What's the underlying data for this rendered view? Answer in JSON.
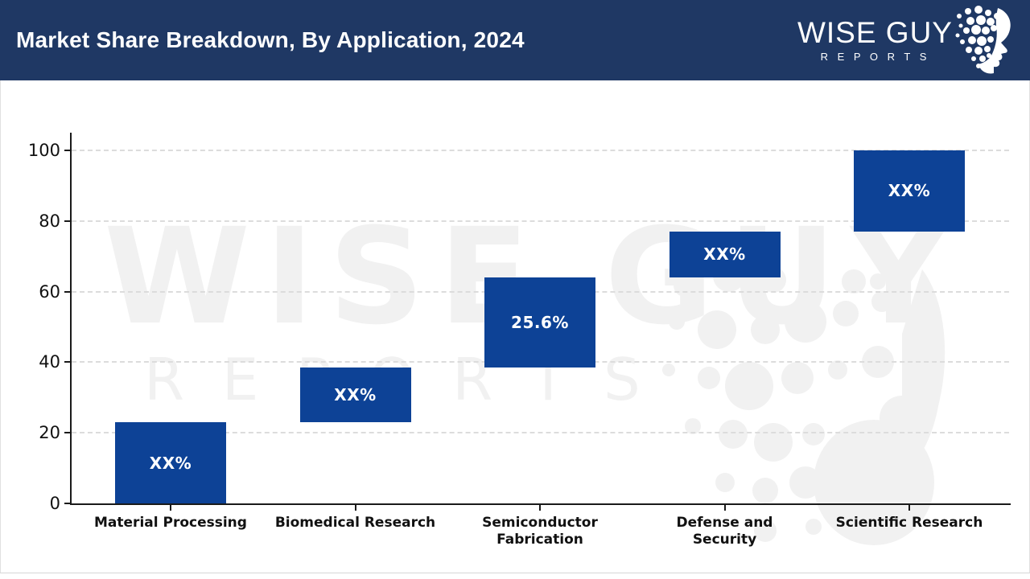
{
  "header": {
    "title": "Market Share Breakdown, By Application, 2024",
    "logo": {
      "name": "WISE GUY",
      "subtitle": "R E P O R T S"
    }
  },
  "watermark": {
    "line1": "WISE GUY",
    "line2": "R E P O R T S"
  },
  "colors": {
    "header_bg": "#1f3864",
    "bar": "#0d4296",
    "bar_label": "#ffffff",
    "grid": "#dcdcdc",
    "axis": "#1a1a1a",
    "watermark": "#f1f1f1"
  },
  "chart_data": {
    "type": "bar",
    "subtype": "waterfall",
    "title": "Market Share Breakdown, By Application, 2024",
    "categories": [
      "Material Processing",
      "Biomedical Research",
      "Semiconductor Fabrication",
      "Defense and Security",
      "Scientific Research"
    ],
    "values": [
      23.0,
      15.5,
      25.6,
      12.9,
      23.0
    ],
    "cumulative_starts": [
      0,
      23.0,
      38.5,
      64.1,
      77.0
    ],
    "bar_labels": [
      "XX%",
      "XX%",
      "25.6%",
      "XX%",
      "XX%"
    ],
    "unit": "percent",
    "ylabel": "",
    "xlabel": "",
    "ylim": [
      0,
      100
    ],
    "yticks": [
      0,
      20,
      40,
      60,
      80,
      100
    ],
    "grid": "horizontal-dashed",
    "legend": "none"
  }
}
